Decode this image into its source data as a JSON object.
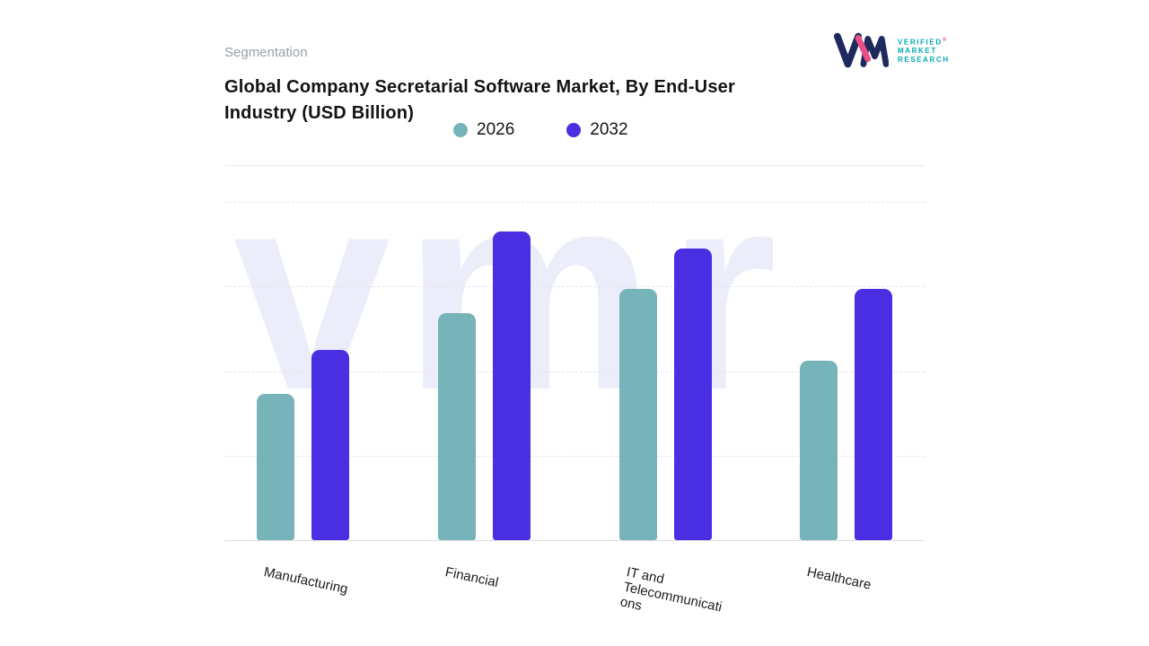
{
  "header": {
    "segmentation_label": "Segmentation"
  },
  "logo": {
    "line1": "VERIFIED",
    "line2": "MARKET",
    "line3": "RESEARCH",
    "registered": "®"
  },
  "watermark": {
    "text": "vmr"
  },
  "colors": {
    "series_2026": "#76b4b9",
    "series_2032": "#4a2ee2",
    "watermark": "#ecedfa",
    "logo_navy": "#1e2a5e",
    "logo_pink": "#ec4f87",
    "logo_teal": "#00a9b4"
  },
  "chart_data": {
    "type": "bar",
    "title": "Global Company Secretarial Software Market, By End-User Industry (USD Billion)",
    "categories": [
      "Manufacturing",
      "Financial",
      "IT and Telecommunications",
      "Healthcare"
    ],
    "series": [
      {
        "name": "2026",
        "color": "#76b4b9",
        "values": [
          43,
          67,
          74,
          53
        ]
      },
      {
        "name": "2032",
        "color": "#4a2ee2",
        "values": [
          56,
          91,
          86,
          74
        ]
      }
    ],
    "xlabel": "",
    "ylabel": "",
    "ylim": [
      0,
      100
    ],
    "grid": true,
    "legend_position": "top"
  }
}
